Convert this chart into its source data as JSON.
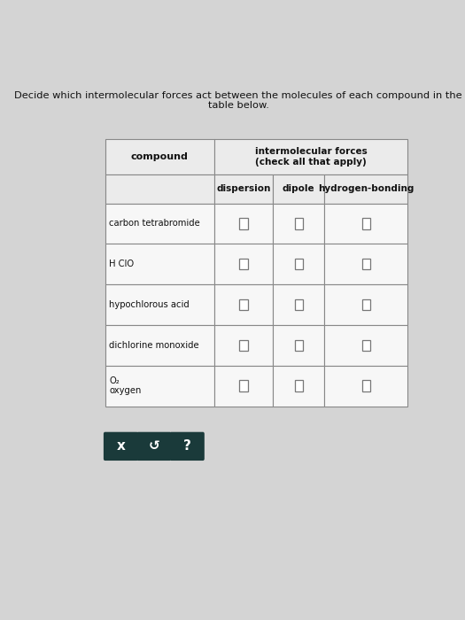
{
  "title": "Decide which intermolecular forces act between the molecules of each compound in the table below.",
  "bg_color": "#d4d4d4",
  "header_text_color": "#111111",
  "col1": "compound",
  "col2": "dispersion",
  "col3": "dipole",
  "col4": "hydrogen-bonding",
  "col_header_line1": "intermolecular forces",
  "col_header_line2": "(check all that apply)",
  "row_labels": [
    "carbon tetrabromide",
    "H ClO",
    "hypochlorous acid",
    "dichlorine monoxide",
    "O₂\noxygen"
  ],
  "button_bg": "#1a3a3a",
  "button_texts": [
    "x",
    "↺",
    "?"
  ]
}
